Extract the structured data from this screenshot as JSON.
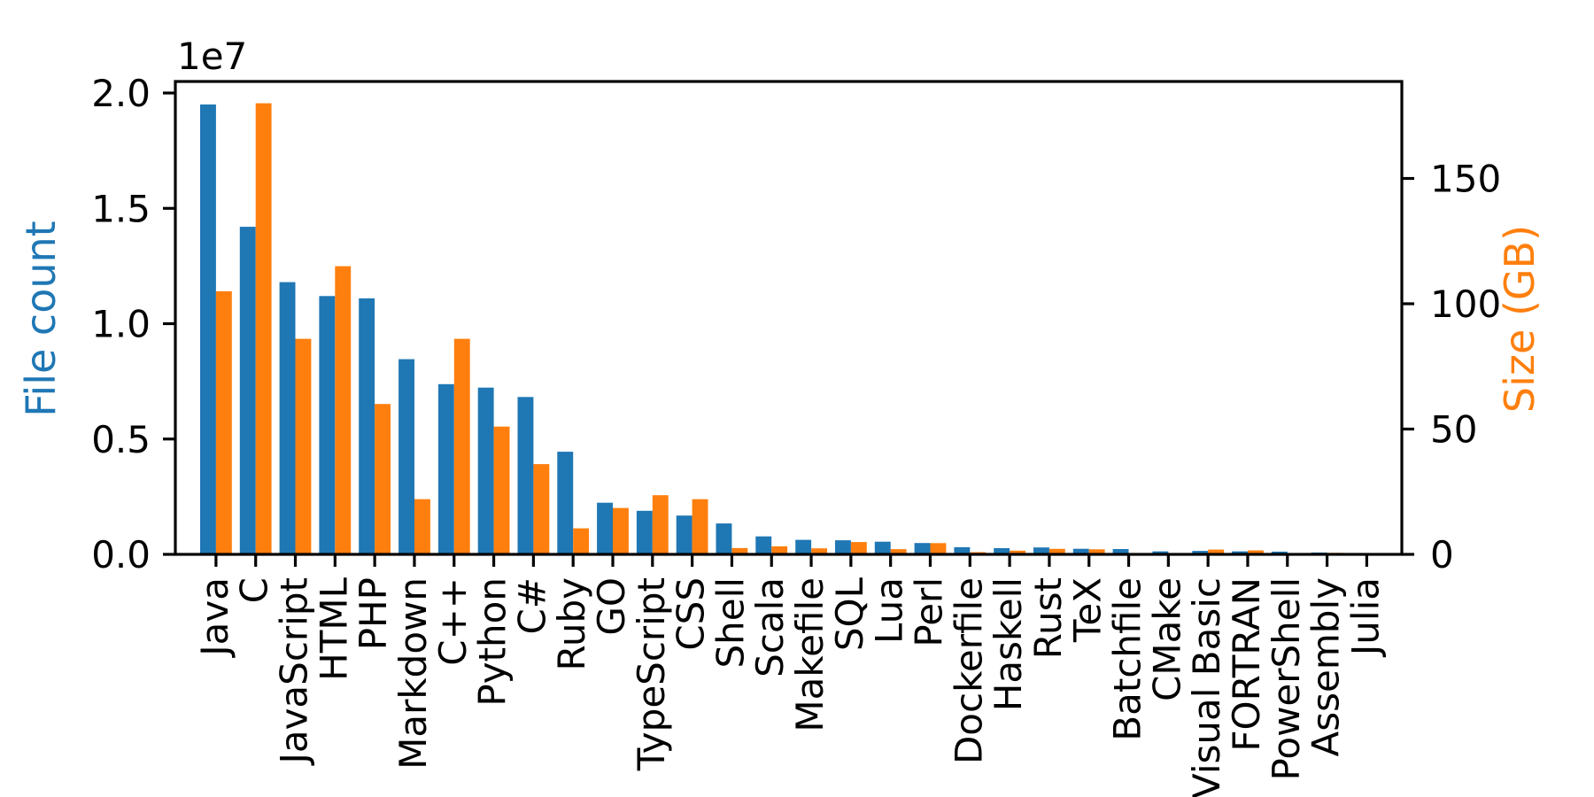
{
  "chart_data": {
    "type": "bar",
    "title": "",
    "description": "Grouped dual-axis bar chart: file count (blue, left axis, scale 1e7) and size in GB (orange, right axis) for 30 programming languages",
    "categories": [
      "Java",
      "C",
      "JavaScript",
      "HTML",
      "PHP",
      "Markdown",
      "C++",
      "Python",
      "C#",
      "Ruby",
      "GO",
      "TypeScript",
      "CSS",
      "Shell",
      "Scala",
      "Makefile",
      "SQL",
      "Lua",
      "Perl",
      "Dockerfile",
      "Haskell",
      "Rust",
      "TeX",
      "Batchfile",
      "CMake",
      "Visual Basic",
      "FORTRAN",
      "PowerShell",
      "Assembly",
      "Julia"
    ],
    "series": [
      {
        "name": "File count",
        "axis": "left",
        "color": "#1f77b4",
        "values": [
          19500000,
          14200000,
          11800000,
          11200000,
          11100000,
          8460000,
          7380000,
          7230000,
          6820000,
          4450000,
          2240000,
          1890000,
          1680000,
          1340000,
          780000,
          630000,
          610000,
          550000,
          490000,
          310000,
          270000,
          300000,
          240000,
          230000,
          130000,
          150000,
          130000,
          120000,
          80000,
          40000
        ]
      },
      {
        "name": "Size (GB)",
        "axis": "right",
        "color": "#ff7f0e",
        "values": [
          105,
          180,
          86,
          115,
          60,
          22,
          86,
          51,
          36,
          10.4,
          18.5,
          23.6,
          22,
          2.5,
          3.2,
          2.4,
          4.9,
          2.1,
          4.5,
          0.9,
          1.5,
          2.2,
          2.0,
          0.35,
          0.2,
          1.9,
          1.6,
          0.3,
          0.6,
          0.15
        ]
      }
    ],
    "left_axis": {
      "label": "File count",
      "color": "#1f77b4",
      "offset_label": "1e7",
      "max": 20500000,
      "ticks": [
        {
          "label": "0.0",
          "value": 0
        },
        {
          "label": "0.5",
          "value": 5000000
        },
        {
          "label": "1.0",
          "value": 10000000
        },
        {
          "label": "1.5",
          "value": 15000000
        },
        {
          "label": "2.0",
          "value": 20000000
        }
      ]
    },
    "right_axis": {
      "label": "Size (GB)",
      "color": "#ff7f0e",
      "max": 188.7,
      "ticks": [
        {
          "label": "0",
          "value": 0
        },
        {
          "label": "50",
          "value": 50
        },
        {
          "label": "100",
          "value": 100
        },
        {
          "label": "150",
          "value": 150
        }
      ]
    },
    "x_axis": {
      "label": "",
      "tick_rotation_deg": 90
    },
    "legend": "none",
    "grid": false,
    "frame_color": "#000000",
    "background_color": "#ffffff"
  }
}
